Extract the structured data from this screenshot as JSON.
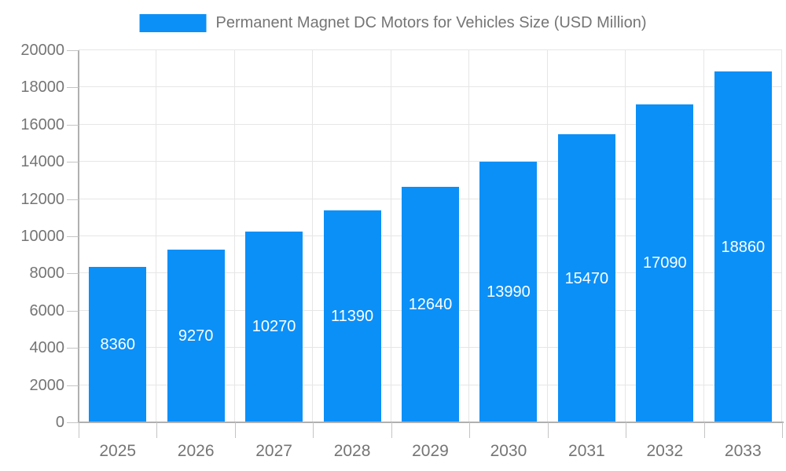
{
  "legend": {
    "label": "Permanent Magnet DC Motors for Vehicles Size (USD Million)"
  },
  "chart_data": {
    "type": "bar",
    "title": "Permanent Magnet DC Motors for Vehicles Size (USD Million)",
    "categories": [
      "2025",
      "2026",
      "2027",
      "2028",
      "2029",
      "2030",
      "2031",
      "2032",
      "2033"
    ],
    "values": [
      8360,
      9270,
      10270,
      11390,
      12640,
      13990,
      15470,
      17090,
      18860
    ],
    "series": [
      {
        "name": "Permanent Magnet DC Motors for Vehicles Size (USD Million)",
        "values": [
          8360,
          9270,
          10270,
          11390,
          12640,
          13990,
          15470,
          17090,
          18860
        ]
      }
    ],
    "xlabel": "",
    "ylabel": "",
    "ylim": [
      0,
      20000
    ],
    "ytick_step": 2000,
    "ytick_labels": [
      "0",
      "2000",
      "4000",
      "6000",
      "8000",
      "10000",
      "12000",
      "14000",
      "16000",
      "18000",
      "20000"
    ],
    "grid": true,
    "legend_position": "top-center",
    "value_labels_shown": true,
    "colors": {
      "bar": "#0b90f8",
      "bar_value_label": "#ffffff",
      "axis_text": "#757575",
      "gridline": "#e6e6e6",
      "tick": "#c4c4c4",
      "axis_line": "#b0b0b0",
      "background": "#ffffff"
    }
  }
}
